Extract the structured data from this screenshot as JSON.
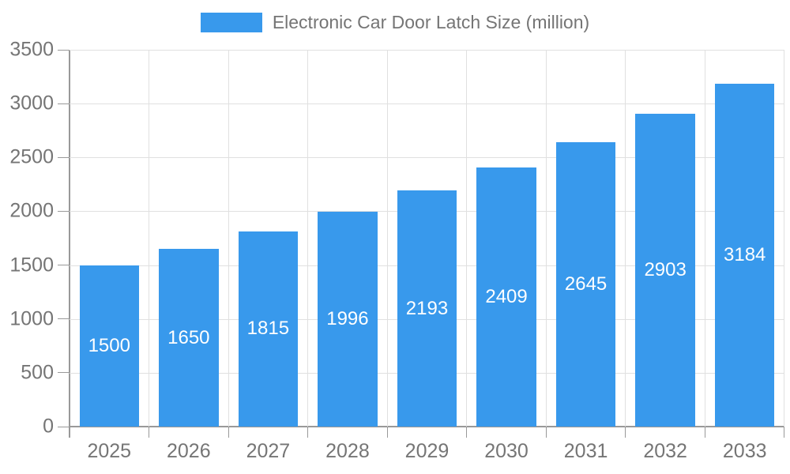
{
  "chart_data": {
    "type": "bar",
    "title": "Electronic Car Door Latch Size (million)",
    "legend": "Electronic Car Door Latch Size (million)",
    "legend_position": "top-center",
    "categories": [
      "2025",
      "2026",
      "2027",
      "2028",
      "2029",
      "2030",
      "2031",
      "2032",
      "2033"
    ],
    "values": [
      1500,
      1650,
      1815,
      1996,
      2193,
      2409,
      2645,
      2903,
      3184
    ],
    "xlabel": "",
    "ylabel": "",
    "ylim": [
      0,
      3500
    ],
    "yticks": [
      0,
      500,
      1000,
      1500,
      2000,
      2500,
      3000,
      3500
    ],
    "grid": true,
    "bar_color": "#3899EC",
    "grid_color": "#E0E0E0",
    "axis_color": "#999999",
    "text_color": "#757575",
    "value_label_color": "#ffffff"
  }
}
